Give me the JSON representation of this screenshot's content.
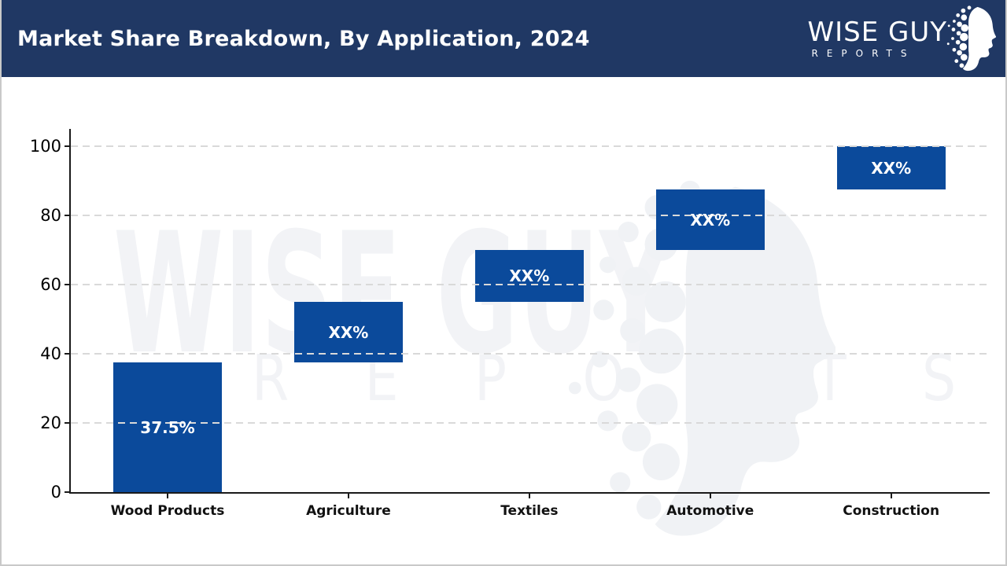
{
  "header": {
    "title": "Market Share Breakdown, By Application, 2024",
    "logo": {
      "line1": "WISE GUY",
      "line2": "REPORTS"
    }
  },
  "watermark": {
    "line1": "WISE GUY",
    "line2": "R E P O R T S"
  },
  "chart_data": {
    "type": "bar",
    "subtype": "waterfall",
    "title": "Market Share Breakdown, By Application, 2024",
    "categories": [
      "Wood Products",
      "Agriculture",
      "Textiles",
      "Automotive",
      "Construction"
    ],
    "values": [
      37.5,
      17.5,
      15,
      17.5,
      12.5
    ],
    "segments": [
      {
        "category": "Wood Products",
        "start": 0,
        "end": 37.5,
        "label": "37.5%"
      },
      {
        "category": "Agriculture",
        "start": 37.5,
        "end": 55,
        "label": "XX%"
      },
      {
        "category": "Textiles",
        "start": 55,
        "end": 70,
        "label": "XX%"
      },
      {
        "category": "Automotive",
        "start": 70,
        "end": 87.5,
        "label": "XX%"
      },
      {
        "category": "Construction",
        "start": 87.5,
        "end": 100,
        "label": "XX%"
      }
    ],
    "xlabel": "",
    "ylabel": "",
    "yticks": [
      0,
      20,
      40,
      60,
      80,
      100
    ],
    "ylim": [
      0,
      105
    ],
    "xlim": [
      -0.535,
      4.545
    ],
    "grid": "dashed-horizontal-over-bars",
    "legend": "none"
  },
  "colors": {
    "header_bg": "#203864",
    "bar": "#0b4a9b",
    "bar_label": "#ffffff",
    "axis": "#1a1a1a",
    "grid": "#d9d9d9",
    "page_border": "#c9c9c9",
    "watermark": "#f2f3f6"
  }
}
